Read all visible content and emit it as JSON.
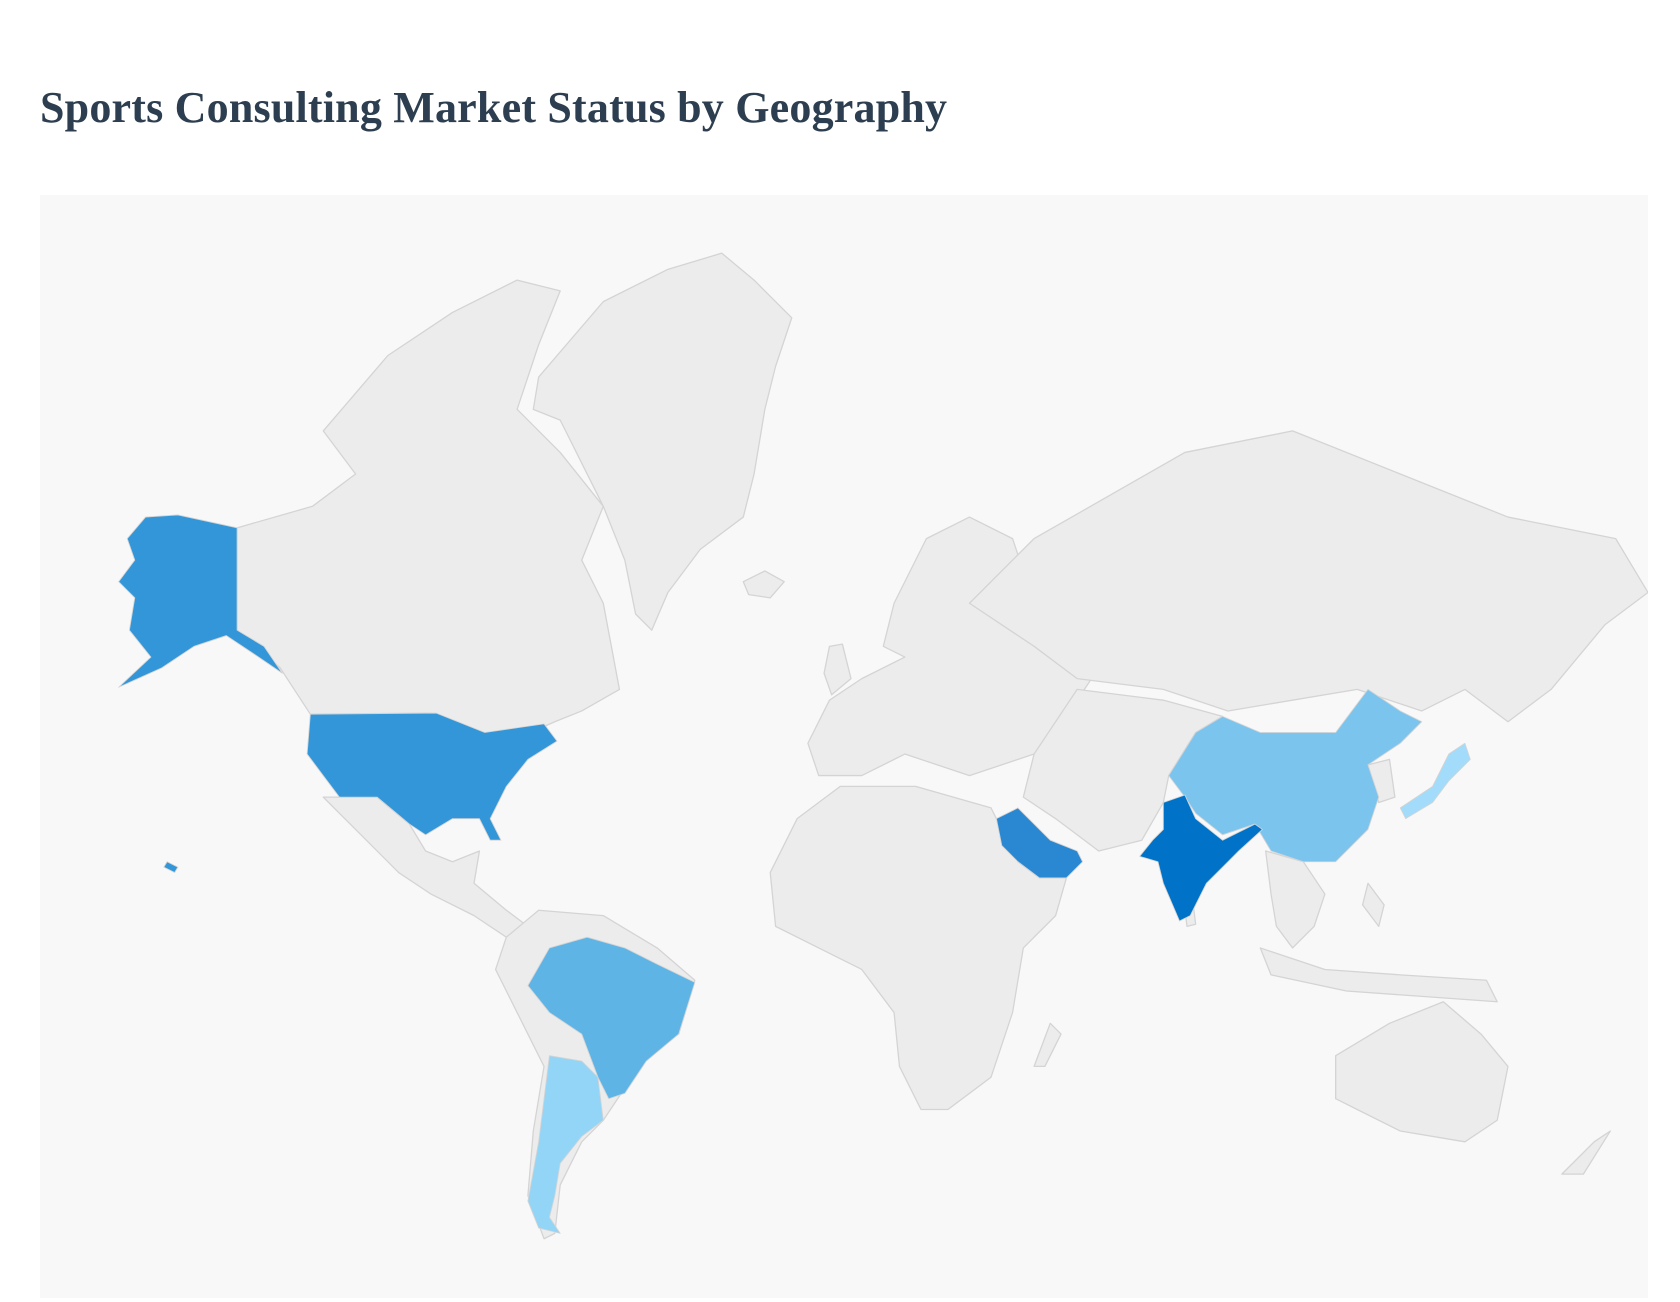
{
  "page": {
    "title": "Sports Consulting Market Status by Geography"
  },
  "map": {
    "background_color": "#f8f8f8",
    "land_color": "#ececec",
    "border_color": "#d4d4d4",
    "highlight_colors": {
      "usa": "#3296d8",
      "saudi_arabia": "#2a88d2",
      "india": "#0073c8",
      "china": "#7bc4ee",
      "brazil": "#5fb4e6",
      "argentina": "#92d5f7",
      "japan": "#a2dcfa"
    }
  }
}
